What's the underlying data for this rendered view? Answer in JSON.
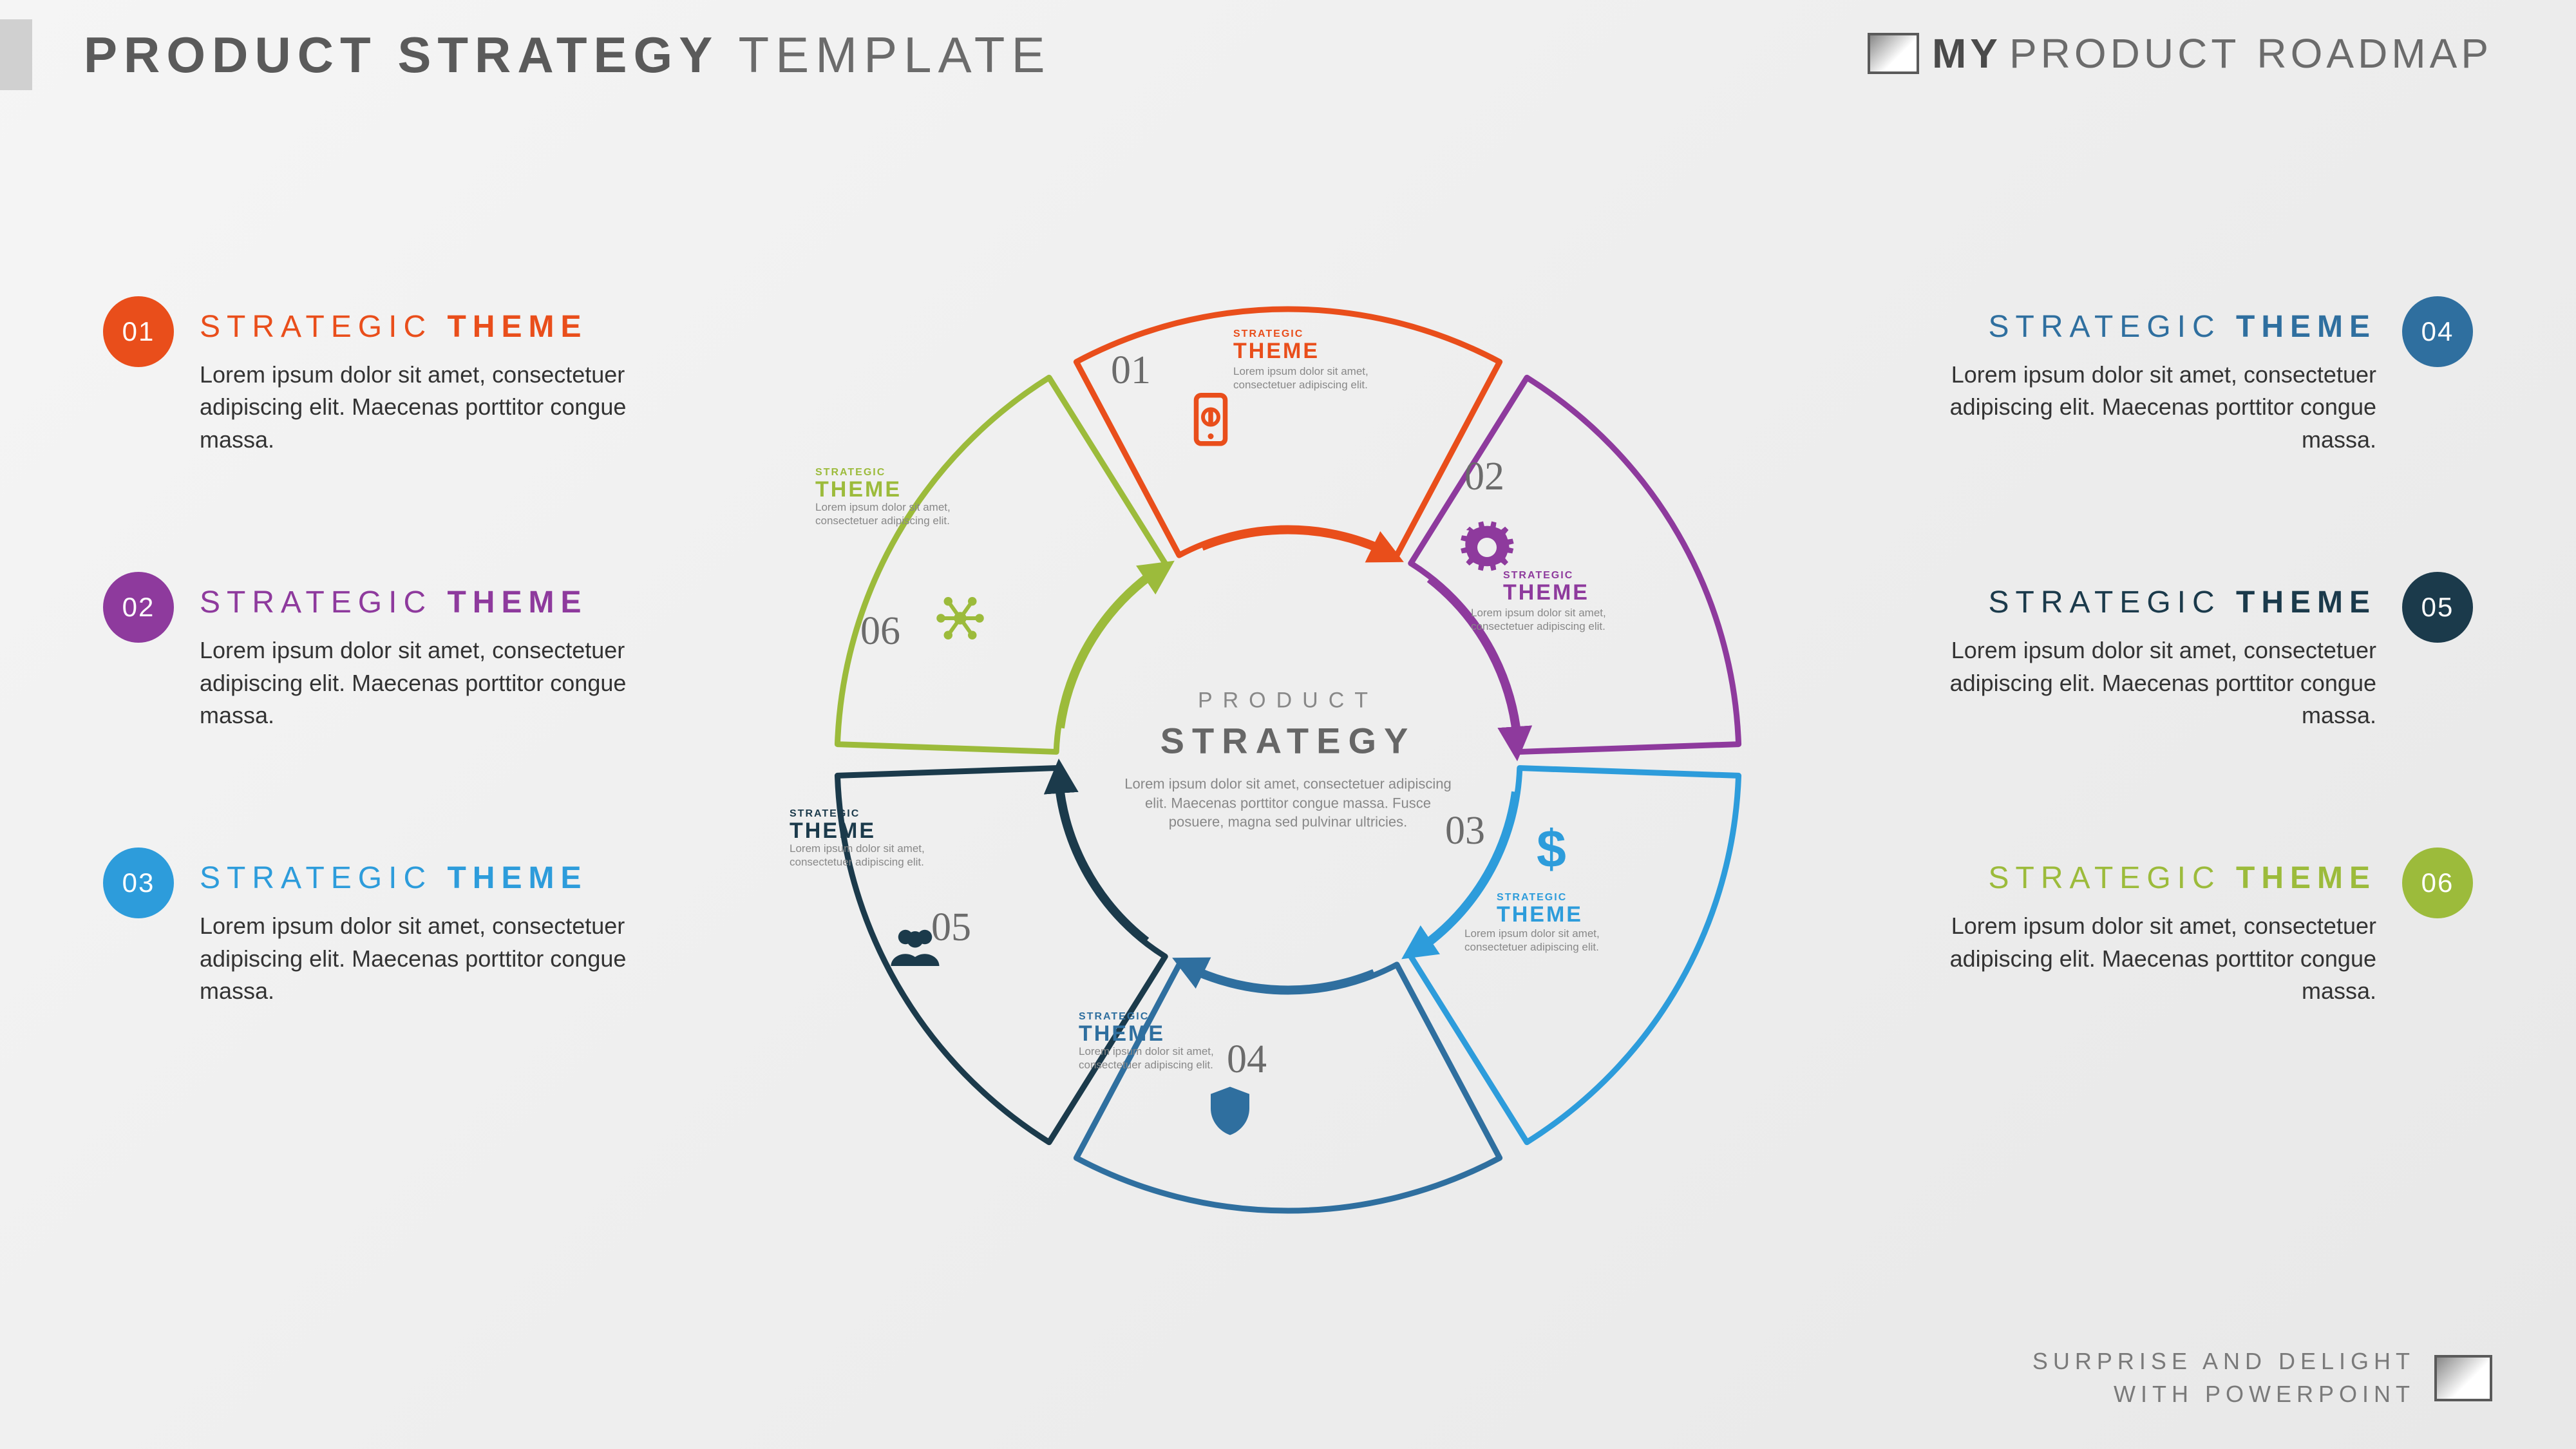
{
  "header": {
    "bold": "PRODUCT STRATEGY",
    "light": " TEMPLATE"
  },
  "brand": {
    "my": "MY",
    "product": "PRODUCT",
    "roadmap": "ROADMAP"
  },
  "footer": {
    "line1": "SURPRISE AND DELIGHT",
    "line2": "WITH POWERPOINT"
  },
  "hub": {
    "sub": "PRODUCT",
    "title": "STRATEGY",
    "desc": "Lorem ipsum dolor sit amet, consectetuer adipiscing elit. Maecenas porttitor congue massa. Fusce posuere, magna sed pulvinar ultricies."
  },
  "item_desc": "Lorem ipsum dolor sit amet, consectetuer adipiscing elit. Maecenas porttitor congue massa.",
  "seg_desc": "Lorem ipsum dolor sit amet, consectetuer adipiscing elit.",
  "themes": [
    {
      "num": "01",
      "title_a": "STRATEGIC ",
      "title_b": "THEME",
      "color": "#e94e1b",
      "seg_sub": "STRATEGIC",
      "seg_label": "THEME",
      "icon": "touch"
    },
    {
      "num": "02",
      "title_a": "STRATEGIC ",
      "title_b": "THEME",
      "color": "#8e3a9d",
      "seg_sub": "STRATEGIC",
      "seg_label": "THEME",
      "icon": "gear"
    },
    {
      "num": "03",
      "title_a": "STRATEGIC ",
      "title_b": "THEME",
      "color": "#2d9cdb",
      "seg_sub": "STRATEGIC",
      "seg_label": "THEME",
      "icon": "dollar"
    },
    {
      "num": "04",
      "title_a": "STRATEGIC ",
      "title_b": "THEME",
      "color": "#2f6f9f",
      "seg_sub": "STRATEGIC",
      "seg_label": "THEME",
      "icon": "shield"
    },
    {
      "num": "05",
      "title_a": "STRATEGIC ",
      "title_b": "THEME",
      "color": "#1b3a4b",
      "seg_sub": "STRATEGIC",
      "seg_label": "THEME",
      "icon": "users"
    },
    {
      "num": "06",
      "title_a": "STRATEGIC ",
      "title_b": "THEME",
      "color": "#9cbb3b",
      "seg_sub": "STRATEGIC",
      "seg_label": "THEME",
      "icon": "hub"
    }
  ],
  "diagram": {
    "type": "circular-cycle",
    "segments": 6,
    "outer_radius": 700,
    "inner_radius": 360,
    "stroke_width": 9,
    "gap_deg": 4,
    "background": "#f1f1f1",
    "center_text_color": "#6b6b6b",
    "arrow_length": 40,
    "seg_number_font": "Georgia, serif",
    "seg_number_size": 62,
    "seg_label_size": 34,
    "seg_desc_size": 17,
    "colors": [
      "#e94e1b",
      "#8e3a9d",
      "#2d9cdb",
      "#2f6f9f",
      "#1b3a4b",
      "#9cbb3b"
    ],
    "start_angle_deg": -120
  }
}
